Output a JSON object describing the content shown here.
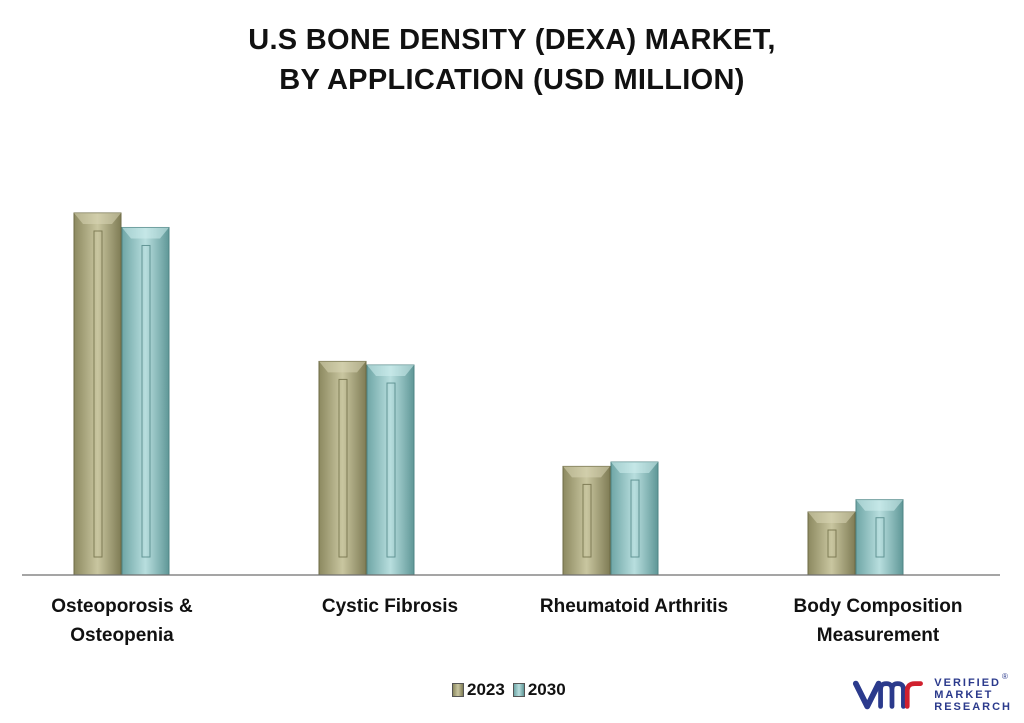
{
  "chart_data": {
    "type": "bar",
    "title_lines": [
      "U.S BONE DENSITY (DEXA) MARKET,",
      "BY APPLICATION (USD MILLION)"
    ],
    "categories": [
      [
        "Osteoporosis &",
        "Osteopenia"
      ],
      [
        "Cystic Fibrosis"
      ],
      [
        "Rheumatoid Arthritis"
      ],
      [
        "Body Composition",
        "Measurement"
      ]
    ],
    "series": [
      {
        "name": "2023",
        "values": [
          100,
          59,
          30,
          17.4
        ]
      },
      {
        "name": "2030",
        "values": [
          96,
          58,
          31.2,
          20.8
        ]
      }
    ],
    "ylim": [
      0,
      100
    ],
    "grid": false,
    "legend_position": "bottom-center",
    "colors": {
      "2023": "#b3b088",
      "2030": "#93c6c6"
    }
  },
  "logo": {
    "icon": "vmr-logo-icon",
    "lines": [
      "VERIFIED",
      "MARKET",
      "RESEARCH"
    ],
    "reg_mark": "®"
  }
}
